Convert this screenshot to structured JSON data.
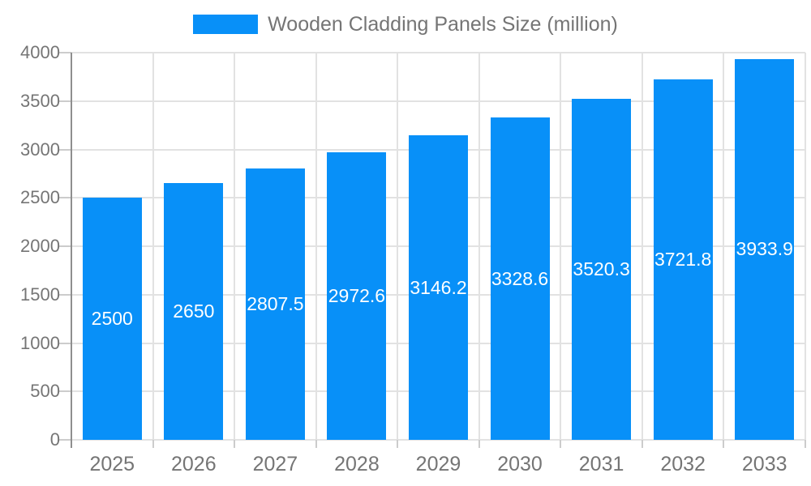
{
  "legend": {
    "label": "Wooden Cladding Panels Size (million)"
  },
  "colors": {
    "bar": "#0890f8",
    "grid": "#e2e2e2",
    "axis_line": "#8e8e8e",
    "tick": "#cccccc",
    "label_text": "#757575",
    "value_text": "#ffffff",
    "background": "#ffffff"
  },
  "chart_data": {
    "type": "bar",
    "title": "Wooden Cladding Panels Size (million)",
    "series": [
      {
        "name": "Wooden Cladding Panels Size (million)",
        "values": [
          2500,
          2650,
          2807.5,
          2972.6,
          3146.2,
          3328.6,
          3520.3,
          3721.8,
          3933.9
        ]
      }
    ],
    "categories": [
      "2025",
      "2026",
      "2027",
      "2028",
      "2029",
      "2030",
      "2031",
      "2032",
      "2033"
    ],
    "xlabel": "",
    "ylabel": "",
    "ylim": [
      0,
      4000
    ],
    "yticks": [
      0,
      500,
      1000,
      1500,
      2000,
      2500,
      3000,
      3500,
      4000
    ],
    "grid": "horizontal gridlines at y ticks, vertical gridlines at category boundaries",
    "legend_position": "top-center",
    "value_labels": "inside bars, centered, white"
  }
}
